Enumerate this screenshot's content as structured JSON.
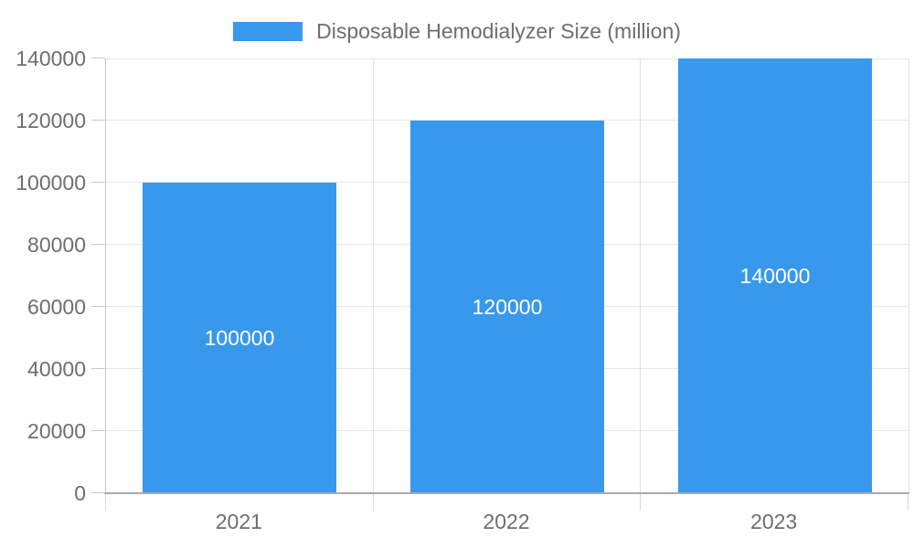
{
  "chart_data": {
    "type": "bar",
    "title": "Disposable Hemodialyzer Size (million)",
    "categories": [
      "2021",
      "2022",
      "2023"
    ],
    "series": [
      {
        "name": "Disposable Hemodialyzer Size (million)",
        "values": [
          100000,
          120000,
          140000
        ]
      }
    ],
    "value_labels": [
      "100000",
      "120000",
      "140000"
    ],
    "xlabel": "",
    "ylabel": "",
    "ylim": [
      0,
      140000
    ],
    "ytick_step": 20000,
    "ytick_labels": [
      "0",
      "20000",
      "40000",
      "60000",
      "80000",
      "100000",
      "120000",
      "140000"
    ],
    "grid": true,
    "legend_position": "top-center",
    "colors": {
      "bar": "#3898ec",
      "value_label": "#ffffff",
      "axis_text": "#6e6e6e",
      "gridline": "#e6e6e6",
      "axis_line": "#ababab"
    }
  }
}
